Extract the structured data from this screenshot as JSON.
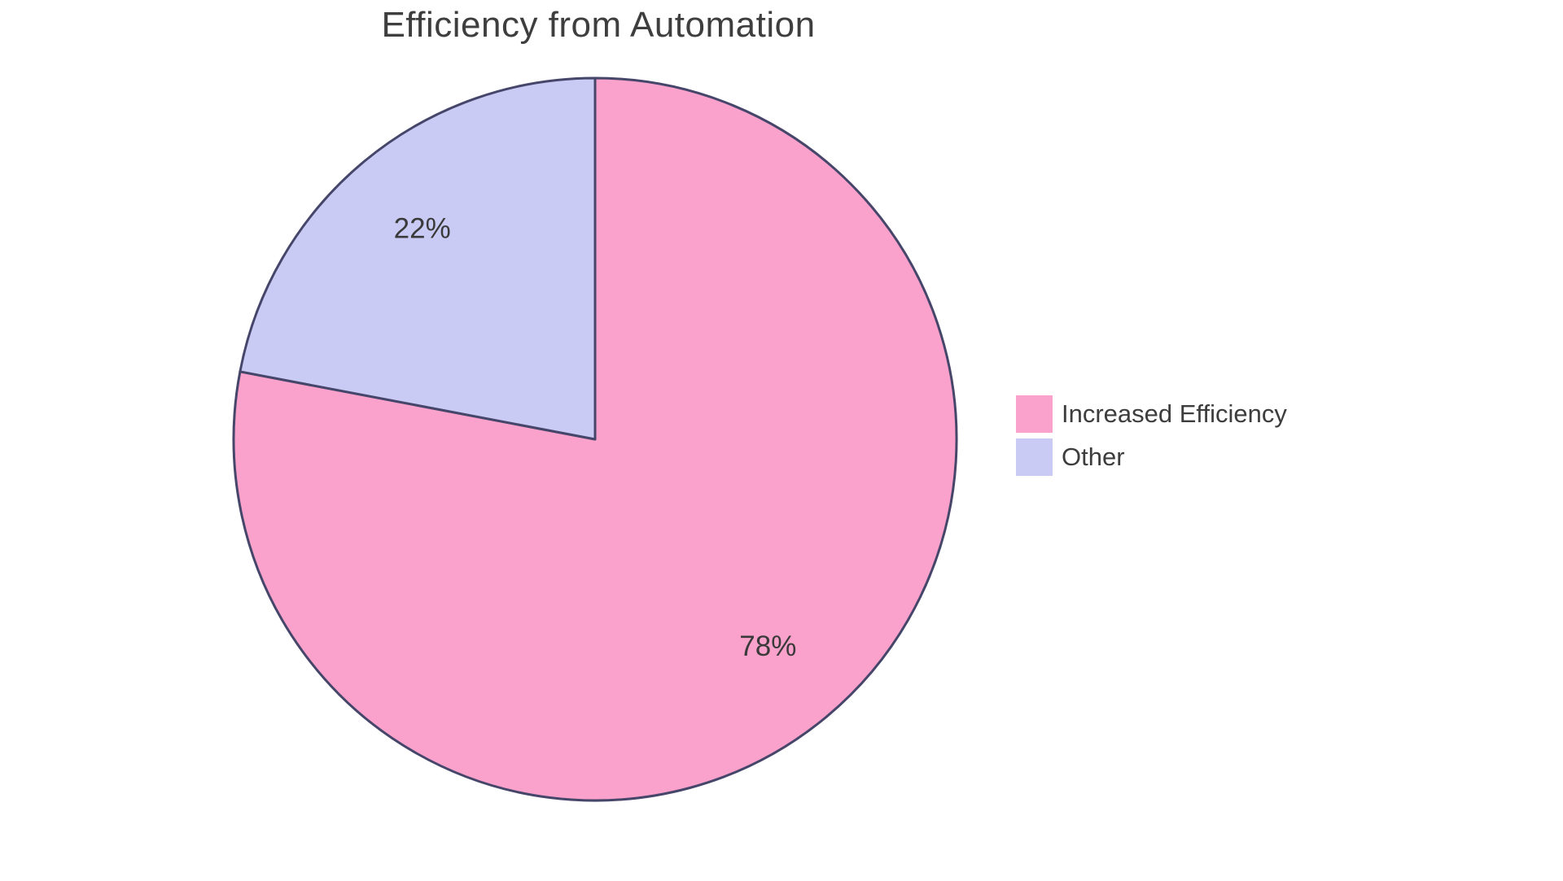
{
  "chart_data": {
    "type": "pie",
    "title": "Efficiency from Automation",
    "labels": [
      "Increased Efficiency",
      "Other"
    ],
    "values": [
      78,
      22
    ],
    "value_labels": [
      "78%",
      "22%"
    ],
    "colors": [
      "#FAA2CB",
      "#C9CBF4"
    ],
    "stroke_color": "#46456A",
    "label_color": "#3A3A3A",
    "start_angle_deg": 0,
    "direction": "clockwise",
    "label_radius_fraction": 0.75,
    "legend_position": "right",
    "legend": [
      {
        "label": "Increased Efficiency",
        "color": "#FAA2CB"
      },
      {
        "label": "Other",
        "color": "#C9CBF4"
      }
    ]
  }
}
